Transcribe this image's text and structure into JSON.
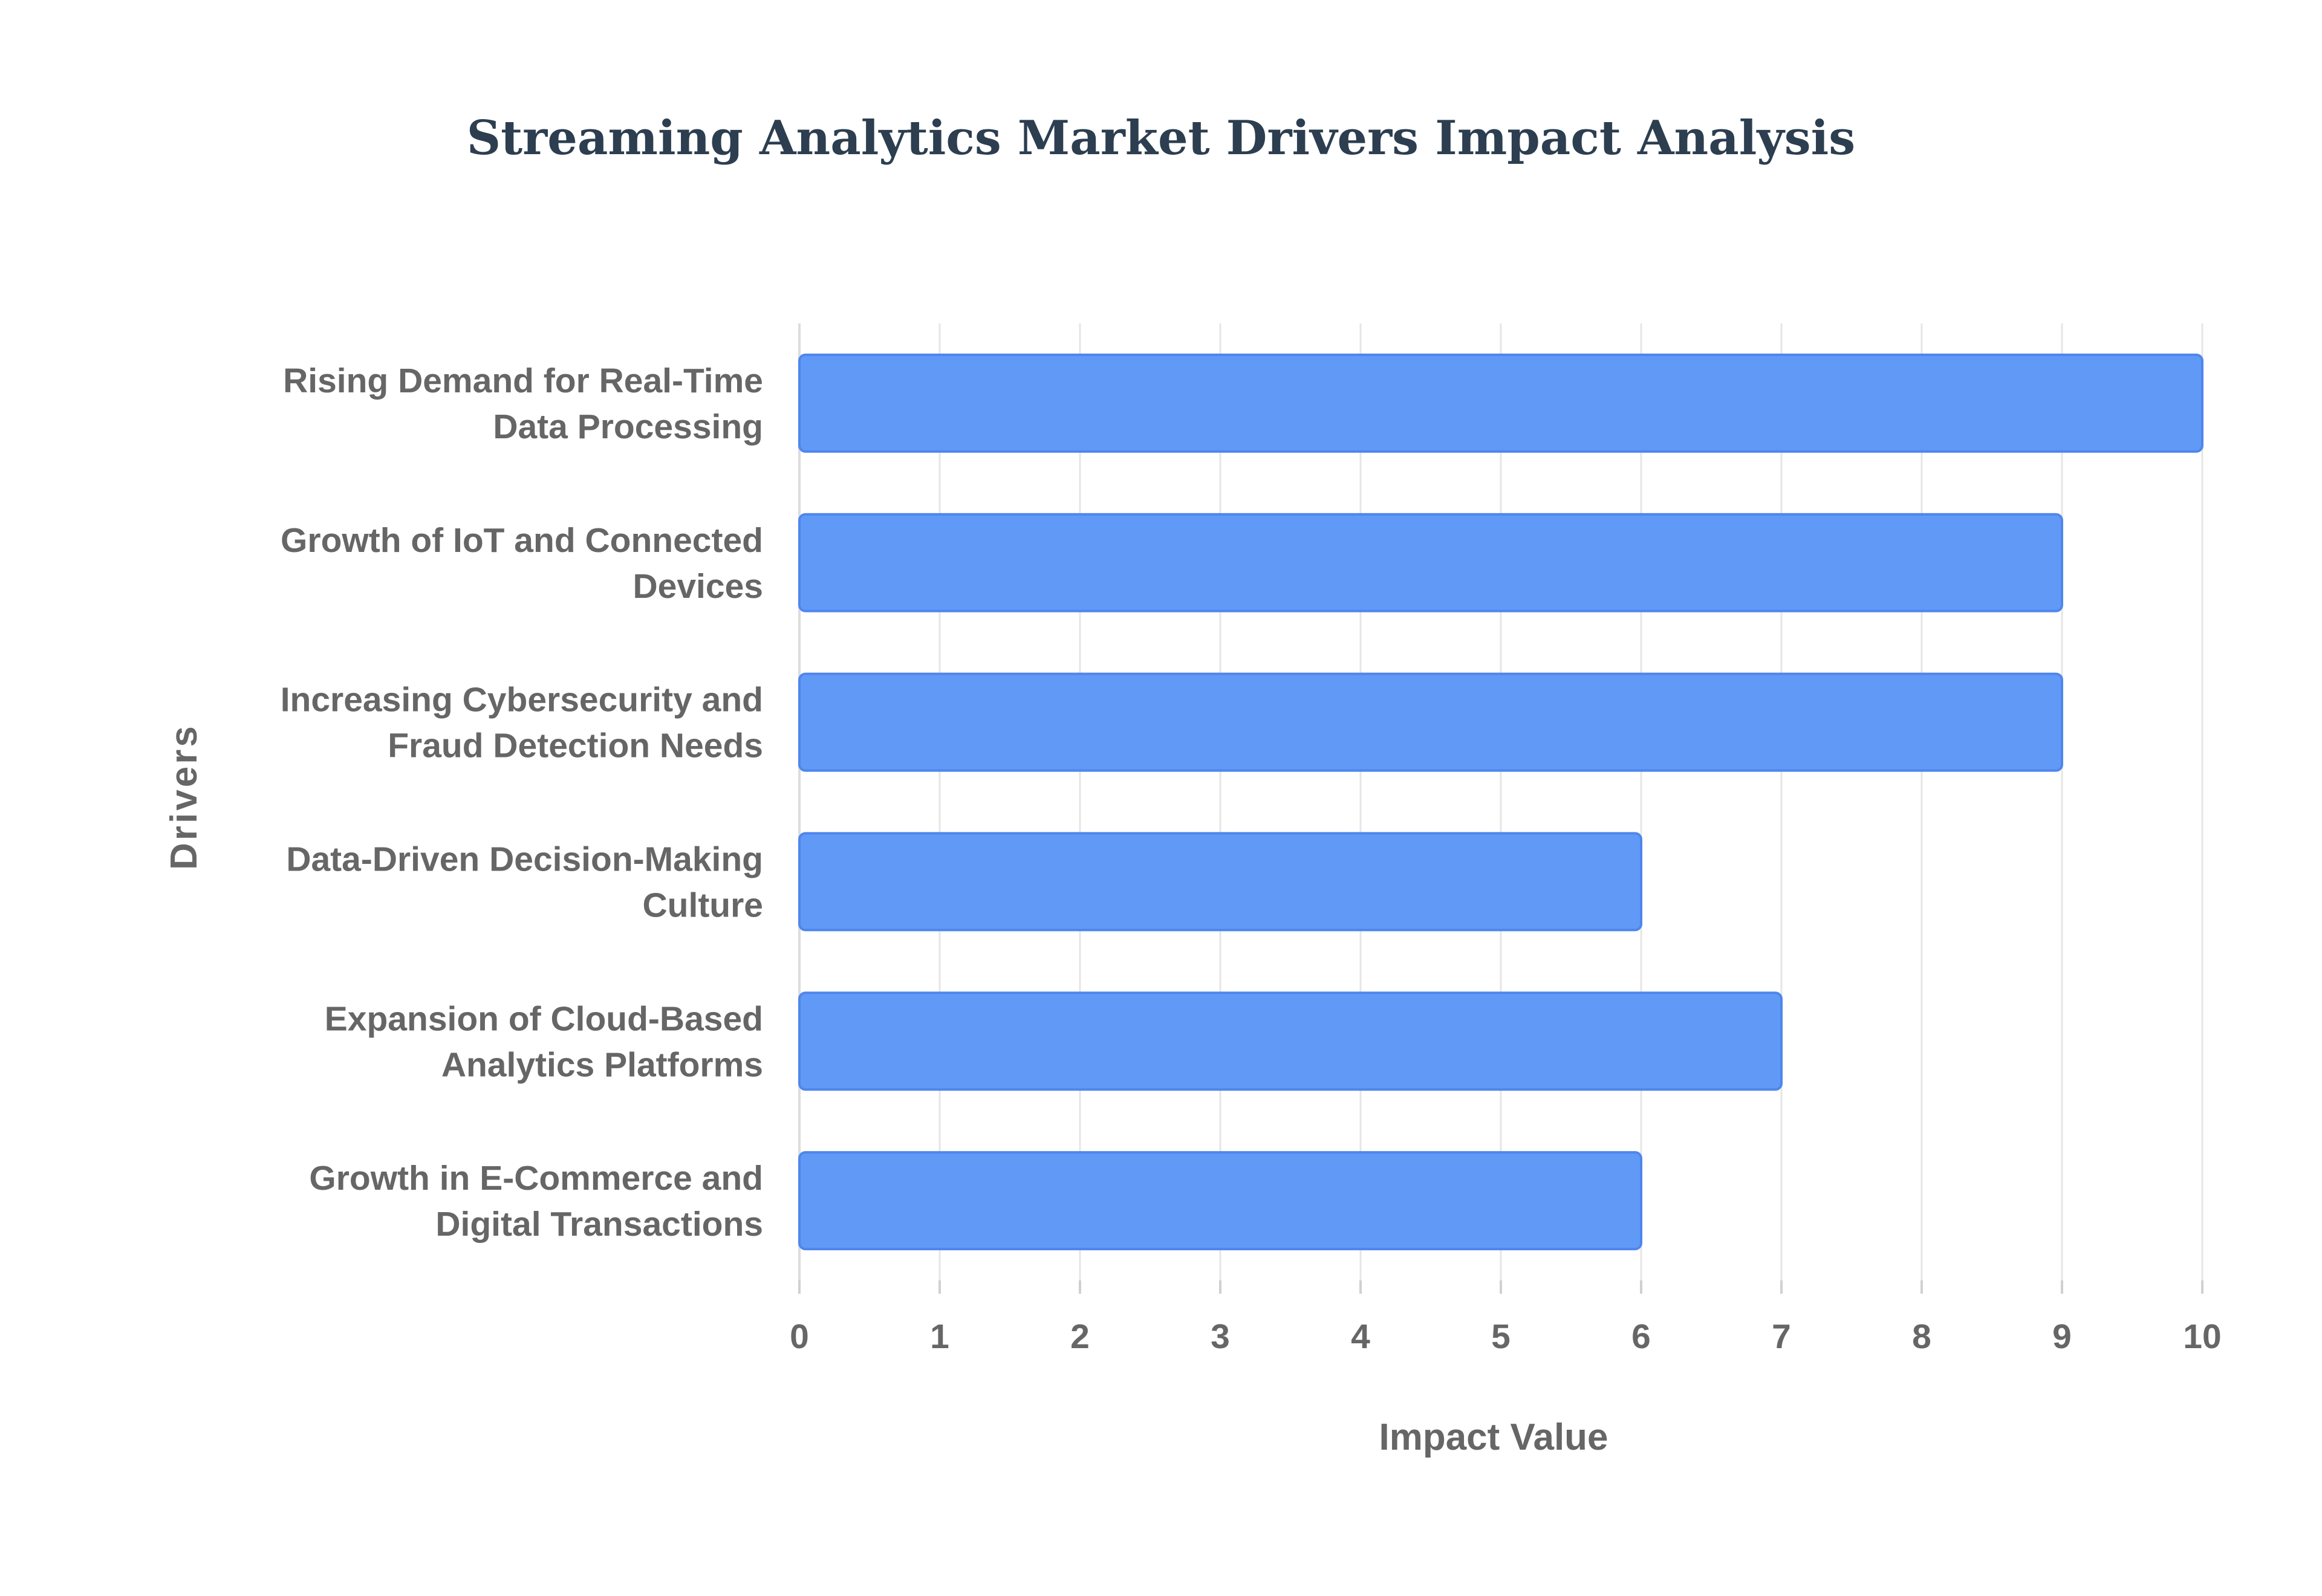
{
  "chart_data": {
    "type": "bar",
    "orientation": "horizontal",
    "title": "Streaming Analytics Market Drivers Impact Analysis",
    "xlabel": "Impact Value",
    "ylabel": "Drivers",
    "xlim": [
      0,
      10
    ],
    "x_ticks": [
      "0",
      "1",
      "2",
      "3",
      "4",
      "5",
      "6",
      "7",
      "8",
      "9",
      "10"
    ],
    "grid": true,
    "legend": "none",
    "categories": [
      [
        "Rising Demand for Real-Time",
        "Data Processing"
      ],
      [
        "Growth of IoT and Connected",
        "Devices"
      ],
      [
        "Increasing Cybersecurity and",
        "Fraud Detection Needs"
      ],
      [
        "Data-Driven Decision-Making",
        "Culture"
      ],
      [
        "Expansion of Cloud-Based",
        "Analytics Platforms"
      ],
      [
        "Growth in E-Commerce and",
        "Digital Transactions"
      ]
    ],
    "values": [
      10,
      9,
      9,
      6,
      7,
      6
    ],
    "colors": {
      "bar_fill": "#6199f7",
      "bar_stroke": "#4f86ec"
    }
  }
}
